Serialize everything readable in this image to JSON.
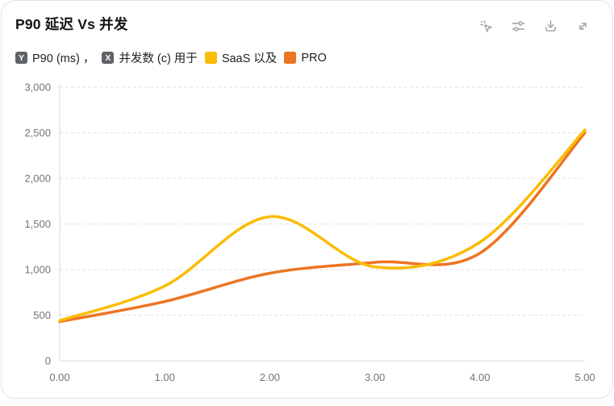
{
  "card": {
    "title": "P90 延迟 Vs 并发"
  },
  "toolbar": {
    "icons": [
      "ai-cursor-icon",
      "sliders-icon",
      "download-icon",
      "expand-icon"
    ]
  },
  "legend": {
    "items": [
      {
        "badge": "Y",
        "text": "P90 (ms) ，"
      },
      {
        "badge": "X",
        "text": "并发数 (c) 用于"
      },
      {
        "swatch": "saas",
        "text": "SaaS 以及"
      },
      {
        "swatch": "pro",
        "text": "PRO"
      }
    ]
  },
  "colors": {
    "saas": "#FBBC04",
    "pro": "#ED7424",
    "axis_label": "#75757A",
    "grid_line": "#E2E2E2",
    "axis_line": "#D8D8D8",
    "badge_bg": "#5F6368"
  },
  "chart_data": {
    "type": "line",
    "title": "P90 延迟 Vs 并发",
    "xlabel": "并发数 (c)",
    "ylabel": "P90 (ms)",
    "smooth": true,
    "grid": "horizontal-dashed",
    "legend_position": "top-left",
    "x": [
      0,
      1,
      2,
      3,
      4,
      5
    ],
    "x_tick_labels": [
      "0.00",
      "1.00",
      "2.00",
      "3.00",
      "4.00",
      "5.00"
    ],
    "xlim": [
      0,
      5
    ],
    "y_ticks": [
      0,
      500,
      1000,
      1500,
      2000,
      2500,
      3000
    ],
    "y_tick_labels": [
      "0",
      "500",
      "1,000",
      "1,500",
      "2,000",
      "2,500",
      "3,000"
    ],
    "ylim": [
      0,
      3000
    ],
    "series": [
      {
        "name": "SaaS",
        "color_key": "saas",
        "values": [
          440,
          820,
          1580,
          1030,
          1300,
          2530
        ]
      },
      {
        "name": "PRO",
        "color_key": "pro",
        "values": [
          430,
          650,
          960,
          1080,
          1180,
          2500
        ]
      }
    ]
  }
}
